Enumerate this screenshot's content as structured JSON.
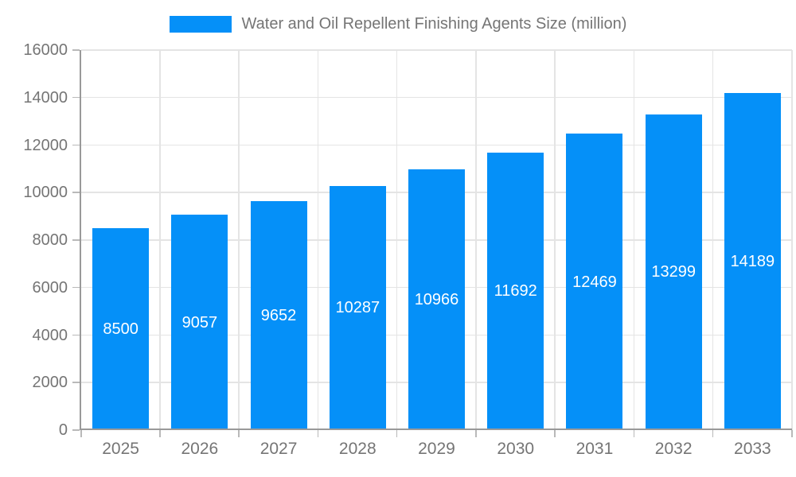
{
  "legend": {
    "label": "Water and Oil Repellent Finishing Agents Size (million)",
    "position": "top-center"
  },
  "chart_data": {
    "type": "bar",
    "title": "Water and Oil Repellent Finishing Agents Size (million)",
    "categories": [
      "2025",
      "2026",
      "2027",
      "2028",
      "2029",
      "2030",
      "2031",
      "2032",
      "2033"
    ],
    "values": [
      8500,
      9057,
      9652,
      10287,
      10966,
      11692,
      12469,
      13299,
      14189
    ],
    "series": [
      {
        "name": "Water and Oil Repellent Finishing Agents Size (million)",
        "values": [
          8500,
          9057,
          9652,
          10287,
          10966,
          11692,
          12469,
          13299,
          14189
        ]
      }
    ],
    "xlabel": "",
    "ylabel": "",
    "ylim": [
      0,
      16000
    ],
    "yticks": [
      0,
      2000,
      4000,
      6000,
      8000,
      10000,
      12000,
      14000,
      16000
    ],
    "grid": true,
    "value_labels_inside_bars": true,
    "legend_position": "top",
    "colors": {
      "bar": "#0590f8",
      "value_label": "#ffffff",
      "axis": "#999999",
      "tick": "#b9b9b9",
      "gridline": "#e4e4e4",
      "text": "#757575",
      "background": "#ffffff"
    }
  }
}
